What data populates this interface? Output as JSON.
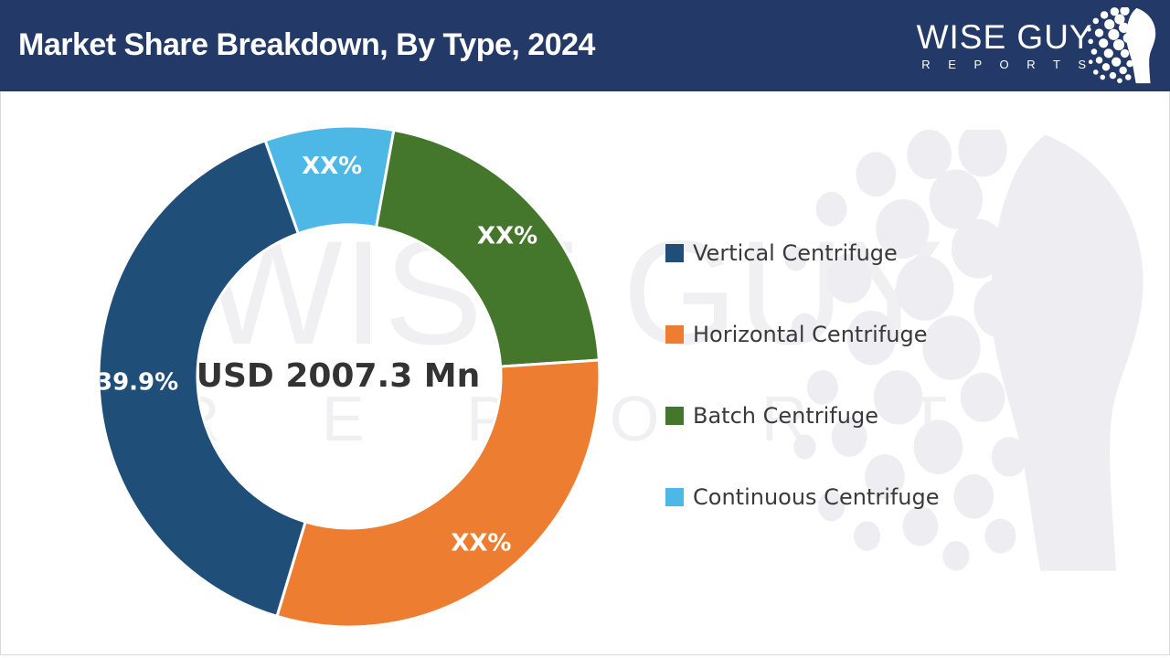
{
  "header": {
    "title": "Market Share Breakdown, By Type, 2024",
    "bg_color": "#233A68",
    "logo": {
      "line1": "WISE GUY",
      "line2": "R E P O R T S"
    }
  },
  "watermark": {
    "line1": "WISE GUY",
    "line2": "R E P O R T S"
  },
  "chart_data": {
    "type": "pie",
    "variant": "donut",
    "title": "Market Share Breakdown, By Type, 2024",
    "center_label": "USD 2007.3 Mn",
    "legend_position": "right",
    "start_angle_deg": -19.6,
    "clockwise_draw_order": [
      "Continuous Centrifuge",
      "Batch Centrifuge",
      "Horizontal Centrifuge",
      "Vertical Centrifuge"
    ],
    "segments": [
      {
        "label": "Vertical Centrifuge",
        "display_value": "39.9%",
        "percent": 39.9,
        "color": "#1F4E79"
      },
      {
        "label": "Horizontal Centrifuge",
        "display_value": "XX%",
        "percent": 30.7,
        "color": "#ED7D31"
      },
      {
        "label": "Batch Centrifuge",
        "display_value": "XX%",
        "percent": 21.1,
        "color": "#44762B"
      },
      {
        "label": "Continuous Centrifuge",
        "display_value": "XX%",
        "percent": 8.3,
        "color": "#4DB8E6"
      }
    ]
  }
}
